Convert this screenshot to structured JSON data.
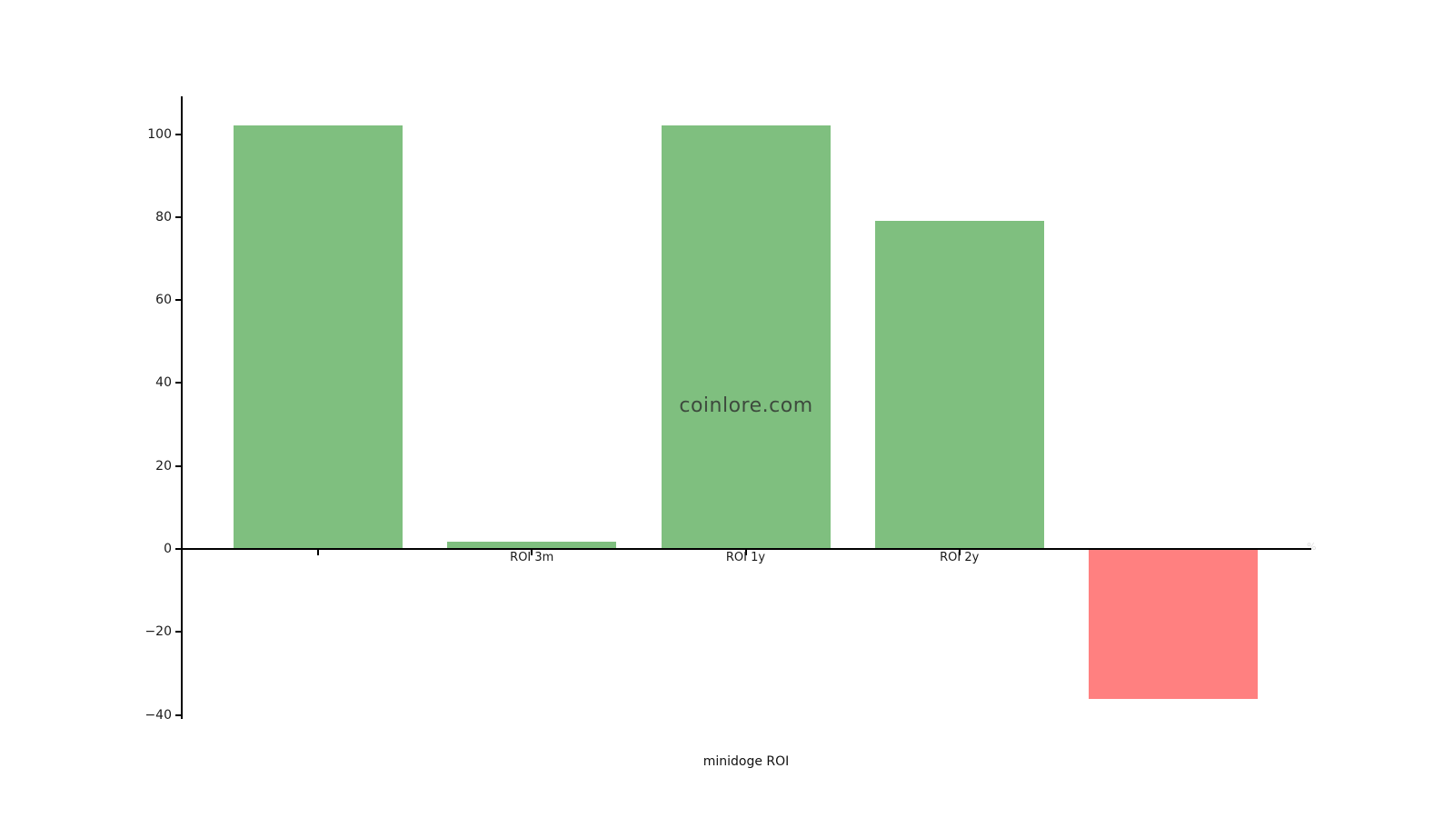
{
  "watermark": {
    "text": "coinlore.com",
    "color": "#2d2d2d"
  },
  "axis_end_mark": {
    "text": "%"
  },
  "chart_data": {
    "type": "bar",
    "title": "minidoge ROI",
    "xlabel": "minidoge ROI",
    "ylabel": "",
    "categories": [
      "",
      "ROI 3m",
      "ROI 1y",
      "ROI 2y",
      ""
    ],
    "values": [
      102,
      1.8,
      102,
      79,
      -36
    ],
    "bar_colors": [
      "#7fbf7f",
      "#7fbf7f",
      "#7fbf7f",
      "#7fbf7f",
      "#ff8080"
    ],
    "positive_color": "#7fbf7f",
    "negative_color": "#ff8080",
    "y_ticks": [
      -40,
      -20,
      0,
      20,
      40,
      60,
      80,
      100
    ],
    "y_tick_labels": [
      "−40",
      "−20",
      "0",
      "20",
      "40",
      "60",
      "80",
      "100"
    ],
    "ylim": [
      -41,
      109
    ],
    "grid": false,
    "legend": "none",
    "unit_hint": "%"
  }
}
